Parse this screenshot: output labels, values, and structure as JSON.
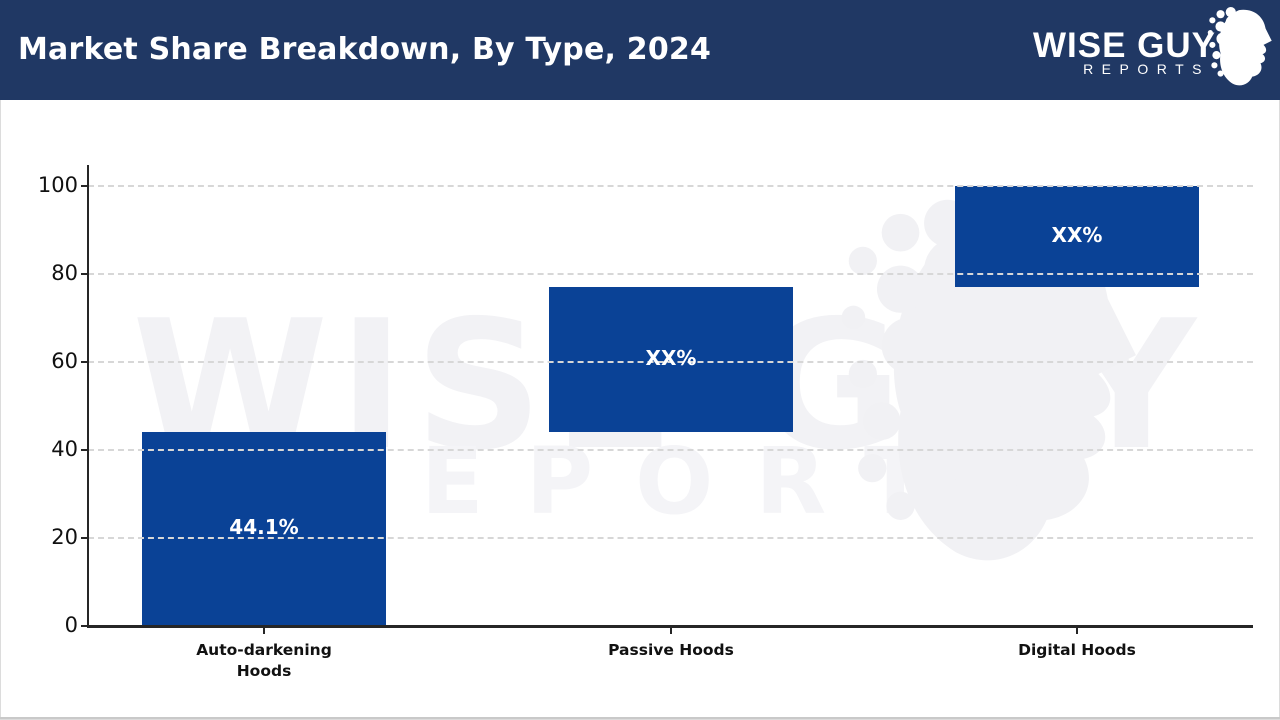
{
  "header": {
    "title": "Market Share Breakdown, By Type, 2024",
    "logo": {
      "brand_line1": "WISE GUY",
      "brand_line2": "REPORTS"
    }
  },
  "watermark": {
    "line1": "WISE GUY",
    "line2": "REPORTS"
  },
  "colors": {
    "header_bg": "#203864",
    "bar": "#0a4296",
    "bar_label": "#ffffff",
    "grid": "#d7d7d7",
    "axis": "#262626",
    "text": "#111111",
    "watermark": "#f2f2f5",
    "bottom_line": "#c9c9c9"
  },
  "chart_data": {
    "type": "bar",
    "subtype": "floating-waterfall",
    "title": "Market Share Breakdown, By Type, 2024",
    "categories": [
      "Auto-darkening\nHoods",
      "Passive Hoods",
      "Digital Hoods"
    ],
    "segments": [
      {
        "category": "Auto-darkening Hoods",
        "start": 0,
        "end": 44.1,
        "label": "44.1%"
      },
      {
        "category": "Passive Hoods",
        "start": 44.1,
        "end": 77,
        "label": "XX%"
      },
      {
        "category": "Digital Hoods",
        "start": 77,
        "end": 100,
        "label": "XX%"
      }
    ],
    "xlabel": "",
    "ylabel": "",
    "yticks": [
      0,
      20,
      40,
      60,
      80,
      100
    ],
    "ylim": [
      0,
      104.8
    ],
    "grid": "horizontal-dashed",
    "legend": null
  }
}
